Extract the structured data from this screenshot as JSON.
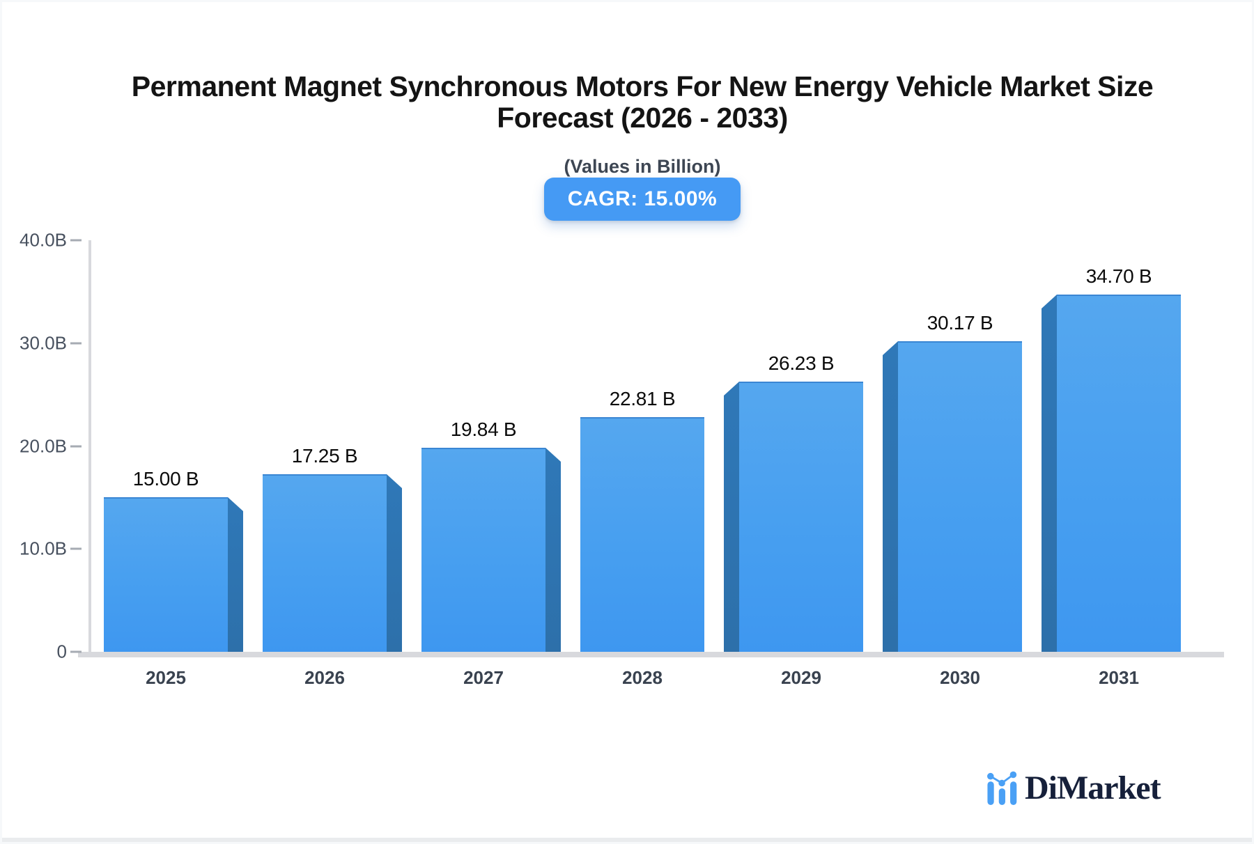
{
  "header": {
    "title_line1": "Permanent Magnet Synchronous Motors For New Energy Vehicle Market Size",
    "title_line2": "Forecast (2026 - 2033)",
    "subtitle": "(Values in Billion)",
    "cagr_badge": "CAGR: 15.00%"
  },
  "chart_data": {
    "type": "bar",
    "title": "Permanent Magnet Synchronous Motors For New Energy Vehicle Market Size Forecast (2026 - 2033)",
    "subtitle": "(Values in Billion)",
    "cagr": "15.00%",
    "categories": [
      "2025",
      "2026",
      "2027",
      "2028",
      "2029",
      "2030",
      "2031"
    ],
    "values": [
      15.0,
      17.25,
      19.84,
      22.81,
      26.23,
      30.17,
      34.7
    ],
    "bar_labels": [
      "15.00 B",
      "17.25 B",
      "19.84 B",
      "22.81 B",
      "26.23 B",
      "30.17 B",
      "34.70 B"
    ],
    "unit": "Billion",
    "xlabel": "",
    "ylabel": "",
    "ylim": [
      0,
      40
    ],
    "y_ticks": [
      {
        "value": 40,
        "label": "40.0B"
      },
      {
        "value": 30,
        "label": "30.0B"
      },
      {
        "value": 20,
        "label": "20.0B"
      },
      {
        "value": 10,
        "label": "10.0B"
      },
      {
        "value": 0,
        "label": "0"
      }
    ],
    "grid": false,
    "legend": false,
    "style": "3d-bars, side panels face toward center vanishing point"
  },
  "colors": {
    "badge_bg": "#459af4",
    "badge_text": "#ffffff",
    "bar_face_top": "#55a7ef",
    "bar_face_bottom": "#3e97f0",
    "bar_side": "#2e74b0",
    "axis": "#d8d9dd",
    "value_label": "#0b0b0b",
    "tick_label": "#47505e",
    "logo_blue": "#4aa0f5",
    "logo_navy": "#16203a"
  },
  "branding": {
    "logo_text": "DiMarket",
    "logo_icon": "mini-bar-chart-icon"
  }
}
